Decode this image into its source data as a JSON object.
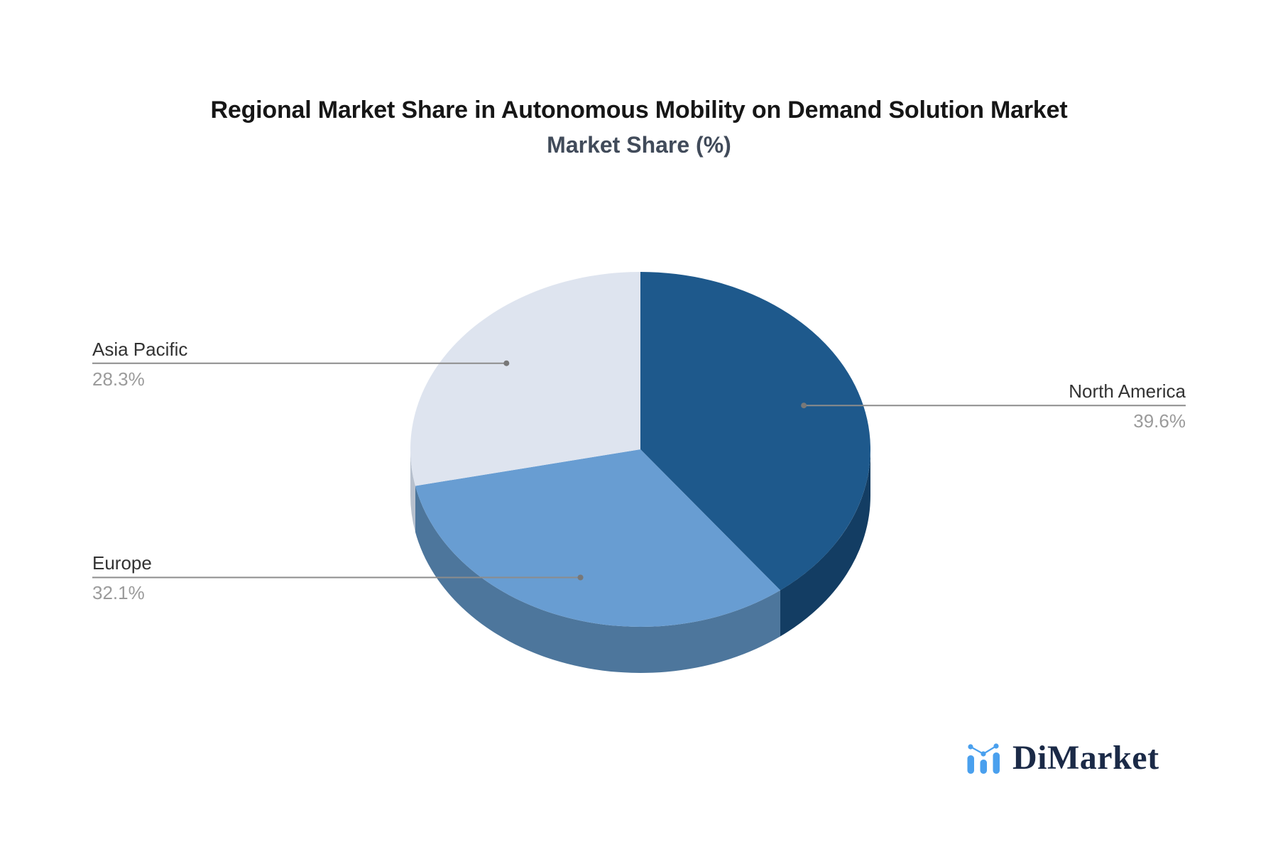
{
  "header": {
    "title": "Regional Market Share in Autonomous Mobility on Demand Solution Market",
    "subtitle": "Market Share (%)"
  },
  "chart_data": {
    "type": "pie",
    "style": "3d",
    "title": "Regional Market Share in Autonomous Mobility on Demand Solution Market",
    "subtitle": "Market Share (%)",
    "unit": "%",
    "direction": "clockwise",
    "start_angle_clock_deg": 0,
    "legend": "none",
    "labeling": "leader-lines-with-percent",
    "slices": [
      {
        "label": "North America",
        "value": 39.6,
        "display": "39.6%",
        "color": "#1e598c",
        "side_color": "#133d63"
      },
      {
        "label": "Europe",
        "value": 32.1,
        "display": "32.1%",
        "color": "#689dd2",
        "side_color": "#4d769c"
      },
      {
        "label": "Asia Pacific",
        "value": 28.3,
        "display": "28.3%",
        "color": "#dee4ef",
        "side_color": "#b7c0cd"
      }
    ]
  },
  "style": {
    "title_color": "#161616",
    "subtitle_color": "#414b5a",
    "label_color": "#323232",
    "pct_color": "#9b9b9b",
    "leader_line_color": "#8c8c8c",
    "leader_dot_color": "#787878",
    "background": "#ffffff"
  },
  "logo": {
    "text": "DiMarket",
    "icon": "bar-chart-with-trend-dots",
    "icon_color": "#4aa0ee",
    "text_color": "#1b2a47"
  }
}
